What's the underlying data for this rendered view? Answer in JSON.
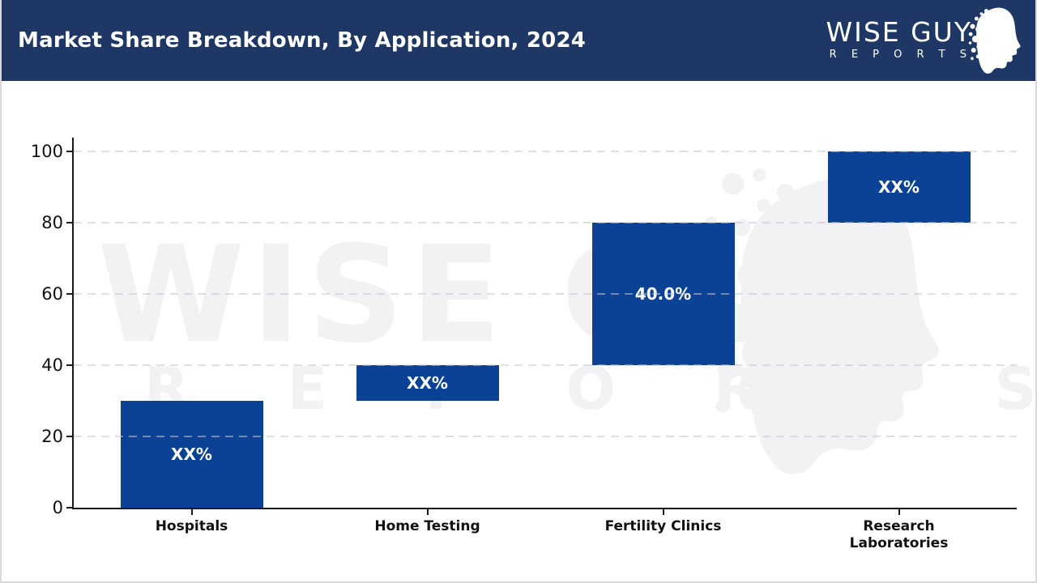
{
  "header": {
    "title": "Market Share Breakdown, By Application, 2024",
    "logo": {
      "wordmark": "WISE GUY",
      "subtext": "R E P O R T S"
    }
  },
  "watermark": {
    "wordmark": "WISE GUY",
    "subtext": "R E P O R T S"
  },
  "chart_data": {
    "type": "bar",
    "subtype": "floating-segment waterfall",
    "title": "Market Share Breakdown, By Application, 2024",
    "categories": [
      "Hospitals",
      "Home Testing",
      "Fertility Clinics",
      "Research Laboratories"
    ],
    "series": [
      {
        "name": "Market share (%)",
        "segments": [
          {
            "category": "Hospitals",
            "from": 0,
            "to": 30,
            "label": "XX%"
          },
          {
            "category": "Home Testing",
            "from": 30,
            "to": 40,
            "label": "XX%"
          },
          {
            "category": "Fertility Clinics",
            "from": 40,
            "to": 80,
            "label": "40.0%"
          },
          {
            "category": "Research Laboratories",
            "from": 80,
            "to": 100,
            "label": "XX%"
          }
        ]
      }
    ],
    "xlabel": "",
    "ylabel": "",
    "ylim": [
      0,
      105
    ],
    "yticks": [
      0,
      20,
      40,
      60,
      80,
      100
    ],
    "grid": "horizontal dashed",
    "legend": "none",
    "colors": {
      "bar": "#0B4295",
      "value_label": "#FFFFFF",
      "axis": "#1A1A1A",
      "grid": "#D9D9D9",
      "header_bg": "#1F3764",
      "watermark": "#F2F2F4",
      "tick_label": "#111111"
    }
  }
}
